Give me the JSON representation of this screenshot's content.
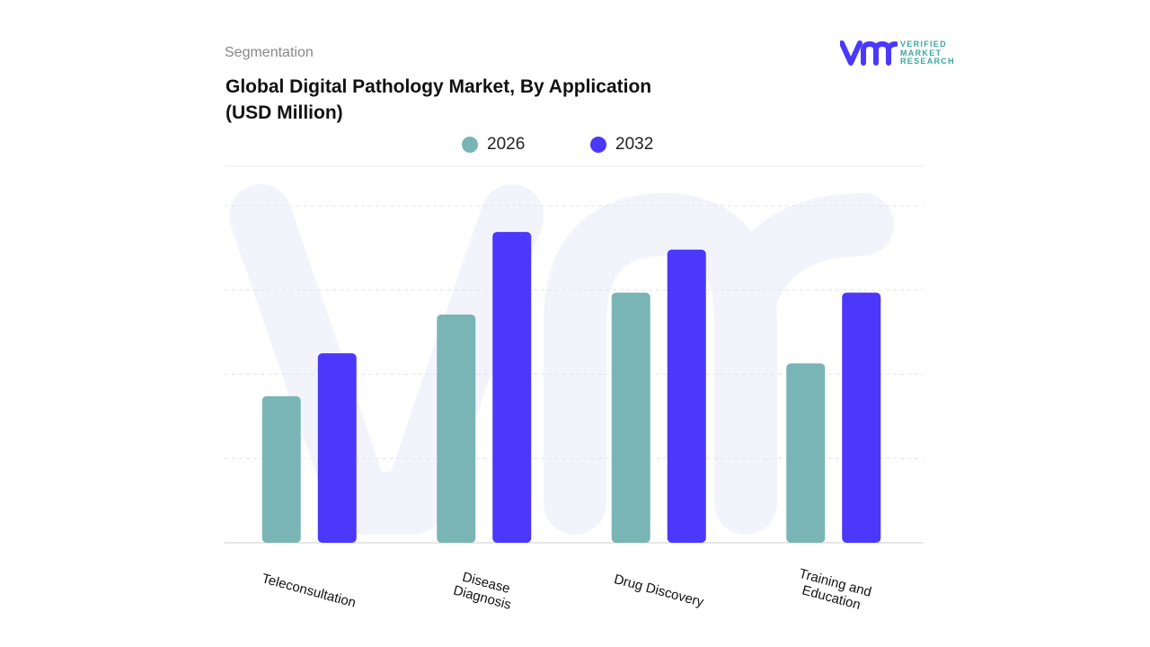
{
  "header": {
    "section": "Segmentation",
    "title_line1": "Global Digital Pathology Market, By Application",
    "title_line2": "(USD Million)"
  },
  "logo": {
    "text": "VERIFIED MARKET RESEARCH",
    "lines": [
      "VERIFIED",
      "MARKET",
      "RESEARCH"
    ]
  },
  "chart_data": {
    "type": "bar",
    "title": "Global Digital Pathology Market, By Application (USD Million)",
    "categories": [
      "Teleconsultation",
      "Disease Diagnosis",
      "Drug Discovery",
      "Training and Education"
    ],
    "category_lines": [
      [
        "Teleconsultation"
      ],
      [
        "Disease",
        "Diagnosis"
      ],
      [
        "Drug Discovery"
      ],
      [
        "Training and",
        "Education"
      ]
    ],
    "series": [
      {
        "name": "2026",
        "color": "#7ab5b6",
        "values": [
          1.74,
          2.71,
          2.97,
          2.13
        ]
      },
      {
        "name": "2032",
        "color": "#4b38fb",
        "values": [
          2.25,
          3.69,
          3.48,
          2.97
        ]
      }
    ],
    "ylim": [
      0,
      4
    ],
    "y_tick_labels_shown": false,
    "grid": true,
    "legend_placement": "top-center",
    "xlabel": "",
    "ylabel": ""
  }
}
